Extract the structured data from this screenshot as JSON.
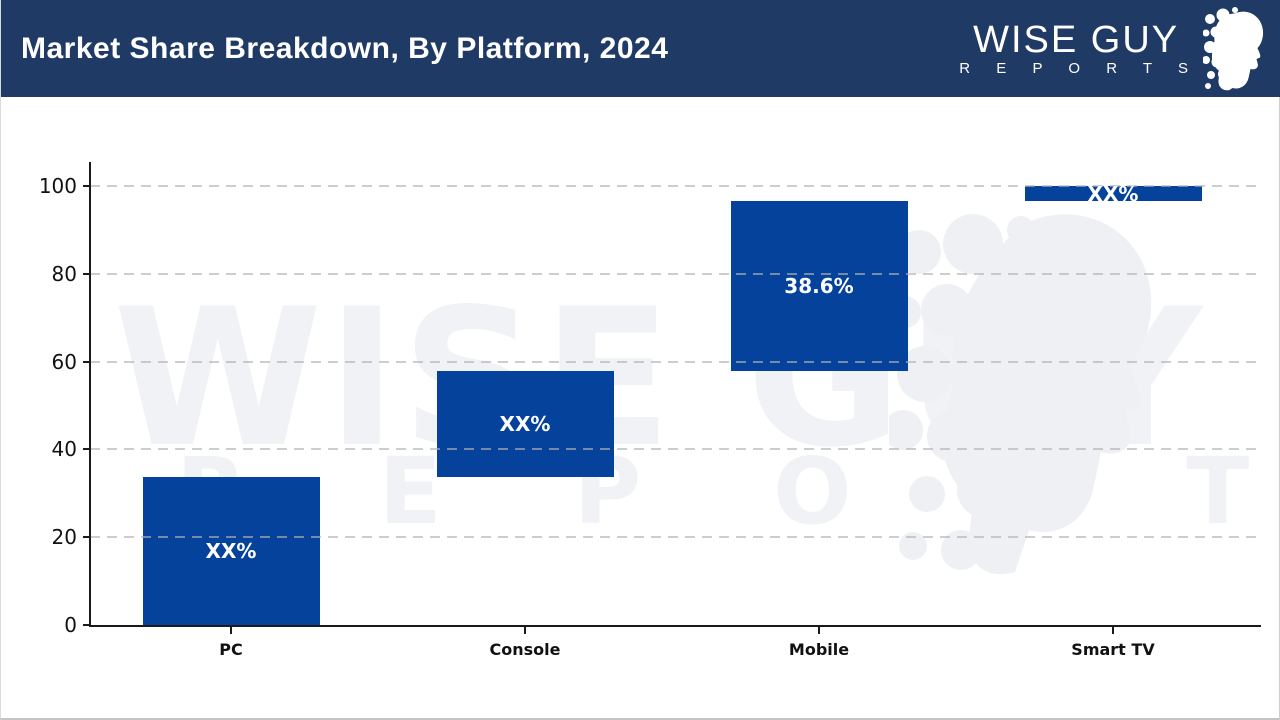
{
  "header": {
    "title": "Market Share Breakdown, By Platform, 2024",
    "background": "#203a66",
    "logo": {
      "line1": "WISE GUY",
      "line2": "R E P O R T S"
    }
  },
  "watermark": {
    "line1": "WISE GUY",
    "line2": "R E P O R T S"
  },
  "chart_data": {
    "type": "waterfall",
    "title": "Market Share Breakdown, By Platform, 2024",
    "categories": [
      "PC",
      "Console",
      "Mobile",
      "Smart TV"
    ],
    "segments": [
      {
        "category": "PC",
        "start": 0,
        "end": 33.6,
        "label": "XX%"
      },
      {
        "category": "Console",
        "start": 33.6,
        "end": 57.9,
        "label": "XX%"
      },
      {
        "category": "Mobile",
        "start": 57.9,
        "end": 96.5,
        "label": "38.6%"
      },
      {
        "category": "Smart TV",
        "start": 96.5,
        "end": 100,
        "label": "XX%"
      }
    ],
    "y_ticks": [
      0,
      20,
      40,
      60,
      80,
      100
    ],
    "ylim": [
      0,
      100
    ],
    "grid": "horizontal-dashed",
    "legend": "none",
    "bar_color": "#05429b",
    "bar_label_color": "#ffffff",
    "axis_color": "#1a1a1a"
  }
}
